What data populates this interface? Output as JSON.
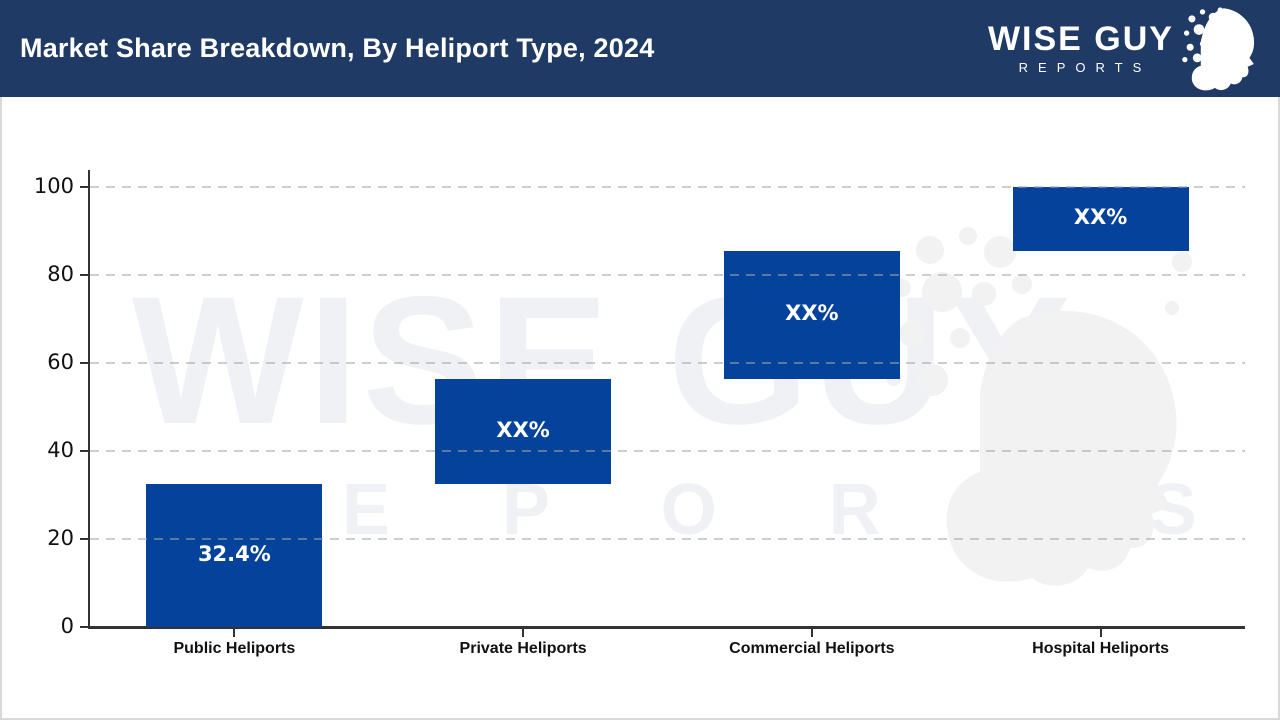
{
  "header": {
    "title": "Market Share Breakdown, By Heliport Type, 2024",
    "logo": {
      "line1": "WISE GUY",
      "line2": "REPORTS"
    }
  },
  "watermark": {
    "line1": "WISE GUY",
    "line2": "R E P O R T S"
  },
  "colors": {
    "header_bg": "#203a66",
    "bar": "#04429b",
    "axis": "#333333",
    "gridline": "#e0e0e0",
    "bar_label": "#ffffff",
    "watermark": "#f0f1f4",
    "body_border": "#d9d9d9"
  },
  "chart_data": {
    "type": "bar",
    "subtype": "waterfall",
    "title": "Market Share Breakdown, By Heliport Type, 2024",
    "categories": [
      "Public Heliports",
      "Private Heliports",
      "Commercial Heliports",
      "Hospital Heliports"
    ],
    "segments": [
      {
        "category": "Public Heliports",
        "start": 0,
        "end": 32.4,
        "label": "32.4%"
      },
      {
        "category": "Private Heliports",
        "start": 32.4,
        "end": 56.4,
        "label": "XX%"
      },
      {
        "category": "Commercial Heliports",
        "start": 56.4,
        "end": 85.5,
        "label": "XX%"
      },
      {
        "category": "Hospital Heliports",
        "start": 85.5,
        "end": 100,
        "label": "XX%"
      }
    ],
    "yticks": [
      0,
      20,
      40,
      60,
      80,
      100
    ],
    "ylim": [
      0,
      100
    ],
    "xlabel": "",
    "ylabel": "",
    "grid": "horizontal-dashed",
    "legend": "none",
    "bar_color": "#04429b"
  }
}
